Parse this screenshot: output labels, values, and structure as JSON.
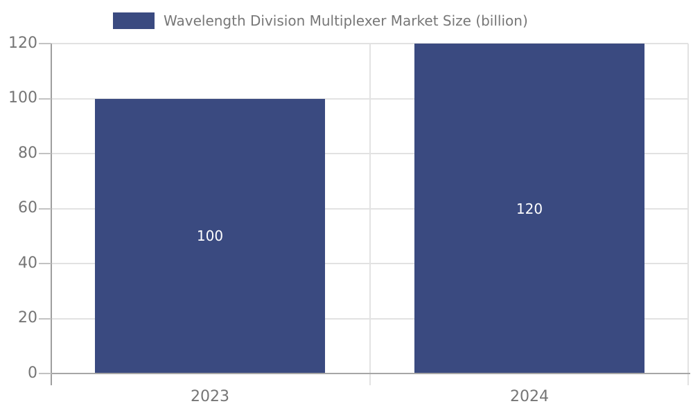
{
  "chart_data": {
    "type": "bar",
    "title": "Wavelength Division Multiplexer Market Size (billion)",
    "categories": [
      "2023",
      "2024"
    ],
    "values": [
      100,
      120
    ],
    "data_labels": [
      "100",
      "120"
    ],
    "xlabel": "",
    "ylabel": "",
    "ylim": [
      0,
      120
    ],
    "yticks": [
      0,
      20,
      40,
      60,
      80,
      100,
      120
    ],
    "ytick_labels": [
      "0",
      "20",
      "40",
      "60",
      "80",
      "100",
      "120"
    ],
    "grid": true,
    "legend": {
      "position": "top",
      "entries": [
        {
          "label": "Wavelength Division Multiplexer Market Size (billion)",
          "color": "#3a4a80"
        }
      ]
    },
    "colors": {
      "bar": "#3a4a80",
      "grid": "#e2e2e2",
      "axis": "#a6a6a6",
      "tick": "#c2c2c2",
      "tick_label": "#757575",
      "legend_label": "#777777",
      "data_label": "#ffffff",
      "background": "#ffffff"
    }
  }
}
